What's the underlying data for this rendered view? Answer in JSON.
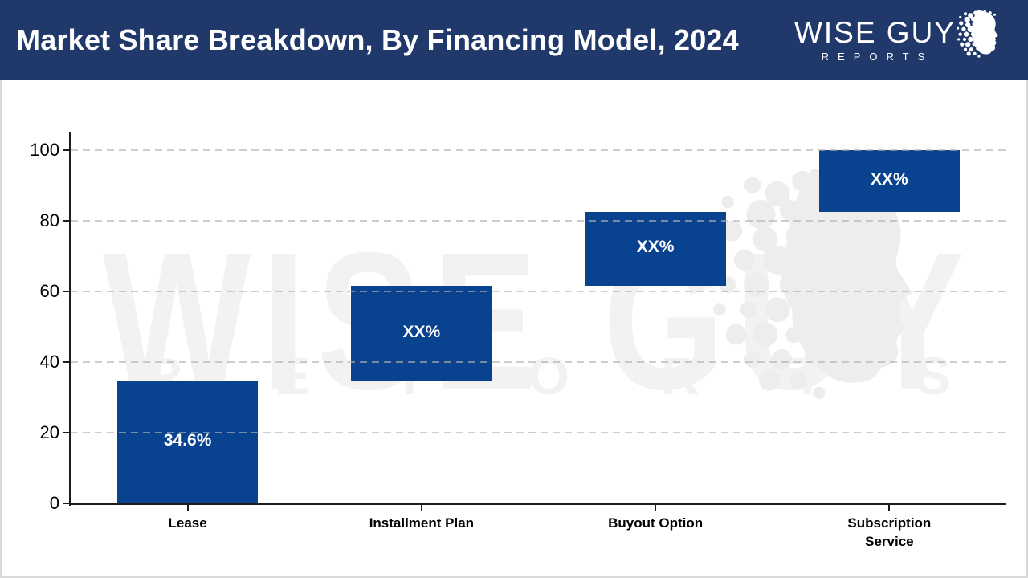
{
  "header": {
    "title": "Market Share Breakdown, By Financing Model, 2024",
    "bg_color": "#21386B",
    "logo": {
      "line1": "WISE GUY",
      "line2": "REPORTS"
    }
  },
  "watermark": {
    "line1": "WISE GUY",
    "line2": "R E P O R T S"
  },
  "chart_data": {
    "type": "bar",
    "subtype": "stepped-waterfall",
    "title": "Market Share Breakdown, By Financing Model, 2024",
    "xlabel": "",
    "ylabel": "",
    "ylim": [
      0,
      100
    ],
    "yticks": [
      0,
      20,
      40,
      60,
      80,
      100
    ],
    "grid": {
      "axis": "y",
      "style": "dashed",
      "color": "#d9d9d9",
      "drawn_over_bars": true
    },
    "legend": "none",
    "bar_color": "#09428F",
    "value_label_color": "#FFFFFF",
    "categories": [
      "Lease",
      "Installment Plan",
      "Buyout Option",
      "Subscription Service"
    ],
    "xlabels_display": [
      [
        "Lease"
      ],
      [
        "Installment Plan"
      ],
      [
        "Buyout Option"
      ],
      [
        "Subscription",
        "Service"
      ]
    ],
    "segments": [
      {
        "category": "Lease",
        "start": 0,
        "end": 34.6,
        "label": "34.6%"
      },
      {
        "category": "Installment Plan",
        "start": 34.6,
        "end": 61.5,
        "label": "XX%"
      },
      {
        "category": "Buyout Option",
        "start": 61.5,
        "end": 82.5,
        "label": "XX%"
      },
      {
        "category": "Subscription Service",
        "start": 82.5,
        "end": 100,
        "label": "XX%"
      }
    ]
  }
}
